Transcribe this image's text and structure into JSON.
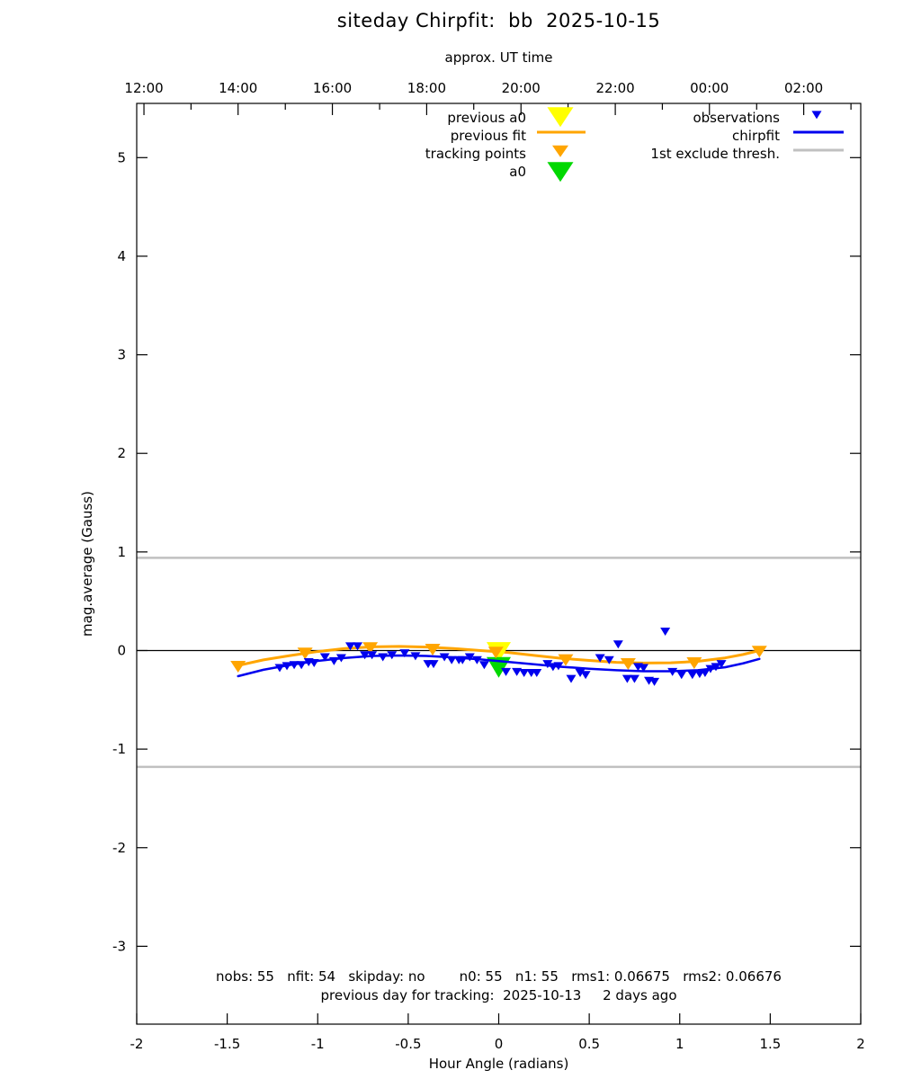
{
  "title": "siteday Chirpfit:  bb  2025-10-15",
  "chart_data": {
    "type": "scatter",
    "title": "siteday Chirpfit:  bb  2025-10-15",
    "xlabel": "Hour Angle (radians)",
    "ylabel": "mag.average (Gauss)",
    "xlim": [
      -2,
      2
    ],
    "ylim": [
      -3.79,
      5.55
    ],
    "xtick_values": [
      -2,
      -1.5,
      -1,
      -0.5,
      0,
      0.5,
      1,
      1.5,
      2
    ],
    "xtick_labels": [
      "-2",
      "-1.5",
      "-1",
      "-0.5",
      "0",
      "0.5",
      "1",
      "1.5",
      "2"
    ],
    "ytick_values": [
      5,
      4,
      3,
      2,
      1,
      0,
      -1,
      -2,
      -3
    ],
    "ytick_labels": [
      "5",
      "4",
      "3",
      "2",
      "1",
      "0",
      "-1",
      "-2",
      "-3"
    ],
    "top_axis": {
      "label": "approx. UT time",
      "major_ticks": [
        {
          "ha": -1.96,
          "label": "12:00"
        },
        {
          "ha": -1.44,
          "label": "14:00"
        },
        {
          "ha": -0.919,
          "label": "16:00"
        },
        {
          "ha": -0.398,
          "label": "18:00"
        },
        {
          "ha": 0.123,
          "label": "20:00"
        },
        {
          "ha": 0.644,
          "label": "22:00"
        },
        {
          "ha": 1.164,
          "label": "00:00"
        },
        {
          "ha": 1.685,
          "label": "02:00"
        }
      ],
      "minor_ticks_ha": [
        -1.7,
        -1.179,
        -0.658,
        -0.138,
        0.383,
        0.904,
        1.425,
        1.946
      ]
    },
    "colors": {
      "observations": "#0000ee",
      "chirpfit": "#0000ee",
      "previous_fit": "#ffa500",
      "tracking_points": "#ffa500",
      "previous_a0": "#ffff00",
      "a0": "#00d800",
      "exclude_threshold": "#c0c0c0",
      "zero_line": "#000000"
    },
    "exclude_thresholds": [
      0.94,
      -1.18
    ],
    "series": {
      "observations": {
        "marker": "triangle-down-small",
        "points": [
          [
            -1.21,
            -0.17
          ],
          [
            -1.17,
            -0.15
          ],
          [
            -1.13,
            -0.14
          ],
          [
            -1.09,
            -0.14
          ],
          [
            -1.05,
            -0.11
          ],
          [
            -1.02,
            -0.12
          ],
          [
            -0.96,
            -0.06
          ],
          [
            -0.91,
            -0.1
          ],
          [
            -0.87,
            -0.07
          ],
          [
            -0.82,
            0.05
          ],
          [
            -0.78,
            0.05
          ],
          [
            -0.74,
            -0.04
          ],
          [
            -0.7,
            -0.04
          ],
          [
            -0.64,
            -0.06
          ],
          [
            -0.59,
            -0.04
          ],
          [
            -0.52,
            -0.02
          ],
          [
            -0.46,
            -0.05
          ],
          [
            -0.39,
            -0.13
          ],
          [
            -0.36,
            -0.13
          ],
          [
            -0.3,
            -0.06
          ],
          [
            -0.26,
            -0.09
          ],
          [
            -0.22,
            -0.09
          ],
          [
            -0.2,
            -0.09
          ],
          [
            -0.16,
            -0.06
          ],
          [
            -0.12,
            -0.09
          ],
          [
            -0.08,
            -0.14
          ],
          [
            0.04,
            -0.21
          ],
          [
            0.1,
            -0.21
          ],
          [
            0.14,
            -0.22
          ],
          [
            0.18,
            -0.22
          ],
          [
            0.21,
            -0.22
          ],
          [
            0.27,
            -0.13
          ],
          [
            0.3,
            -0.16
          ],
          [
            0.33,
            -0.15
          ],
          [
            0.4,
            -0.28
          ],
          [
            0.45,
            -0.22
          ],
          [
            0.48,
            -0.24
          ],
          [
            0.56,
            -0.07
          ],
          [
            0.61,
            -0.09
          ],
          [
            0.66,
            0.07
          ],
          [
            0.71,
            -0.28
          ],
          [
            0.75,
            -0.28
          ],
          [
            0.77,
            -0.16
          ],
          [
            0.8,
            -0.17
          ],
          [
            0.83,
            -0.3
          ],
          [
            0.86,
            -0.31
          ],
          [
            0.92,
            0.2
          ],
          [
            0.96,
            -0.21
          ],
          [
            1.01,
            -0.24
          ],
          [
            1.07,
            -0.24
          ],
          [
            1.11,
            -0.23
          ],
          [
            1.14,
            -0.22
          ],
          [
            1.17,
            -0.18
          ],
          [
            1.2,
            -0.16
          ],
          [
            1.23,
            -0.13
          ]
        ]
      },
      "chirpfit": {
        "line_points": [
          [
            -1.44,
            -0.26
          ],
          [
            -1.3,
            -0.195
          ],
          [
            -1.15,
            -0.145
          ],
          [
            -1.0,
            -0.105
          ],
          [
            -0.85,
            -0.075
          ],
          [
            -0.7,
            -0.055
          ],
          [
            -0.55,
            -0.05
          ],
          [
            -0.4,
            -0.055
          ],
          [
            -0.25,
            -0.07
          ],
          [
            -0.1,
            -0.09
          ],
          [
            0.05,
            -0.115
          ],
          [
            0.2,
            -0.14
          ],
          [
            0.35,
            -0.165
          ],
          [
            0.5,
            -0.185
          ],
          [
            0.65,
            -0.2
          ],
          [
            0.8,
            -0.21
          ],
          [
            0.95,
            -0.21
          ],
          [
            1.1,
            -0.2
          ],
          [
            1.25,
            -0.17
          ],
          [
            1.35,
            -0.13
          ],
          [
            1.44,
            -0.085
          ]
        ]
      },
      "previous_fit": {
        "line_points": [
          [
            -1.44,
            -0.152
          ],
          [
            -1.3,
            -0.095
          ],
          [
            -1.15,
            -0.05
          ],
          [
            -1.0,
            -0.01
          ],
          [
            -0.85,
            0.02
          ],
          [
            -0.7,
            0.037
          ],
          [
            -0.55,
            0.042
          ],
          [
            -0.4,
            0.035
          ],
          [
            -0.25,
            0.02
          ],
          [
            -0.1,
            0.0
          ],
          [
            0.05,
            -0.02
          ],
          [
            0.2,
            -0.05
          ],
          [
            0.35,
            -0.08
          ],
          [
            0.5,
            -0.1
          ],
          [
            0.65,
            -0.12
          ],
          [
            0.8,
            -0.127
          ],
          [
            0.95,
            -0.125
          ],
          [
            1.1,
            -0.11
          ],
          [
            1.25,
            -0.075
          ],
          [
            1.35,
            -0.04
          ],
          [
            1.44,
            0.0
          ]
        ]
      },
      "tracking_points": {
        "marker": "triangle-down-medium",
        "points": [
          [
            -1.44,
            -0.152
          ],
          [
            -1.07,
            -0.018
          ],
          [
            -0.71,
            0.037
          ],
          [
            -0.365,
            0.021
          ],
          [
            -0.016,
            -0.009
          ],
          [
            0.37,
            -0.085
          ],
          [
            0.715,
            -0.125
          ],
          [
            1.08,
            -0.116
          ],
          [
            1.44,
            0.0
          ]
        ]
      },
      "previous_a0": {
        "marker": "triangle-down-big",
        "point": [
          0.0,
          0.005
        ]
      },
      "a0": {
        "marker": "triangle-down-big",
        "point": [
          0.0,
          -0.15
        ]
      }
    },
    "legend": {
      "left": [
        {
          "label": "previous a0",
          "marker": "triangle-big",
          "color": "#ffff00"
        },
        {
          "label": "previous fit",
          "marker": "line",
          "color": "#ffa500"
        },
        {
          "label": "tracking points",
          "marker": "triangle-med",
          "color": "#ffa500"
        },
        {
          "label": "a0",
          "marker": "triangle-big",
          "color": "#00d800"
        }
      ],
      "right": [
        {
          "label": "observations",
          "marker": "triangle-small",
          "color": "#0000ee"
        },
        {
          "label": "chirpfit",
          "marker": "line",
          "color": "#0000ee"
        },
        {
          "label": "1st exclude thresh.",
          "marker": "line",
          "color": "#c0c0c0"
        }
      ]
    },
    "stats": {
      "line1": "nobs: 55   nfit: 54   skipday: no        n0: 55   n1: 55   rms1: 0.06675   rms2: 0.06676",
      "line2": "previous day for tracking:  2025-10-13     2 days ago"
    }
  }
}
